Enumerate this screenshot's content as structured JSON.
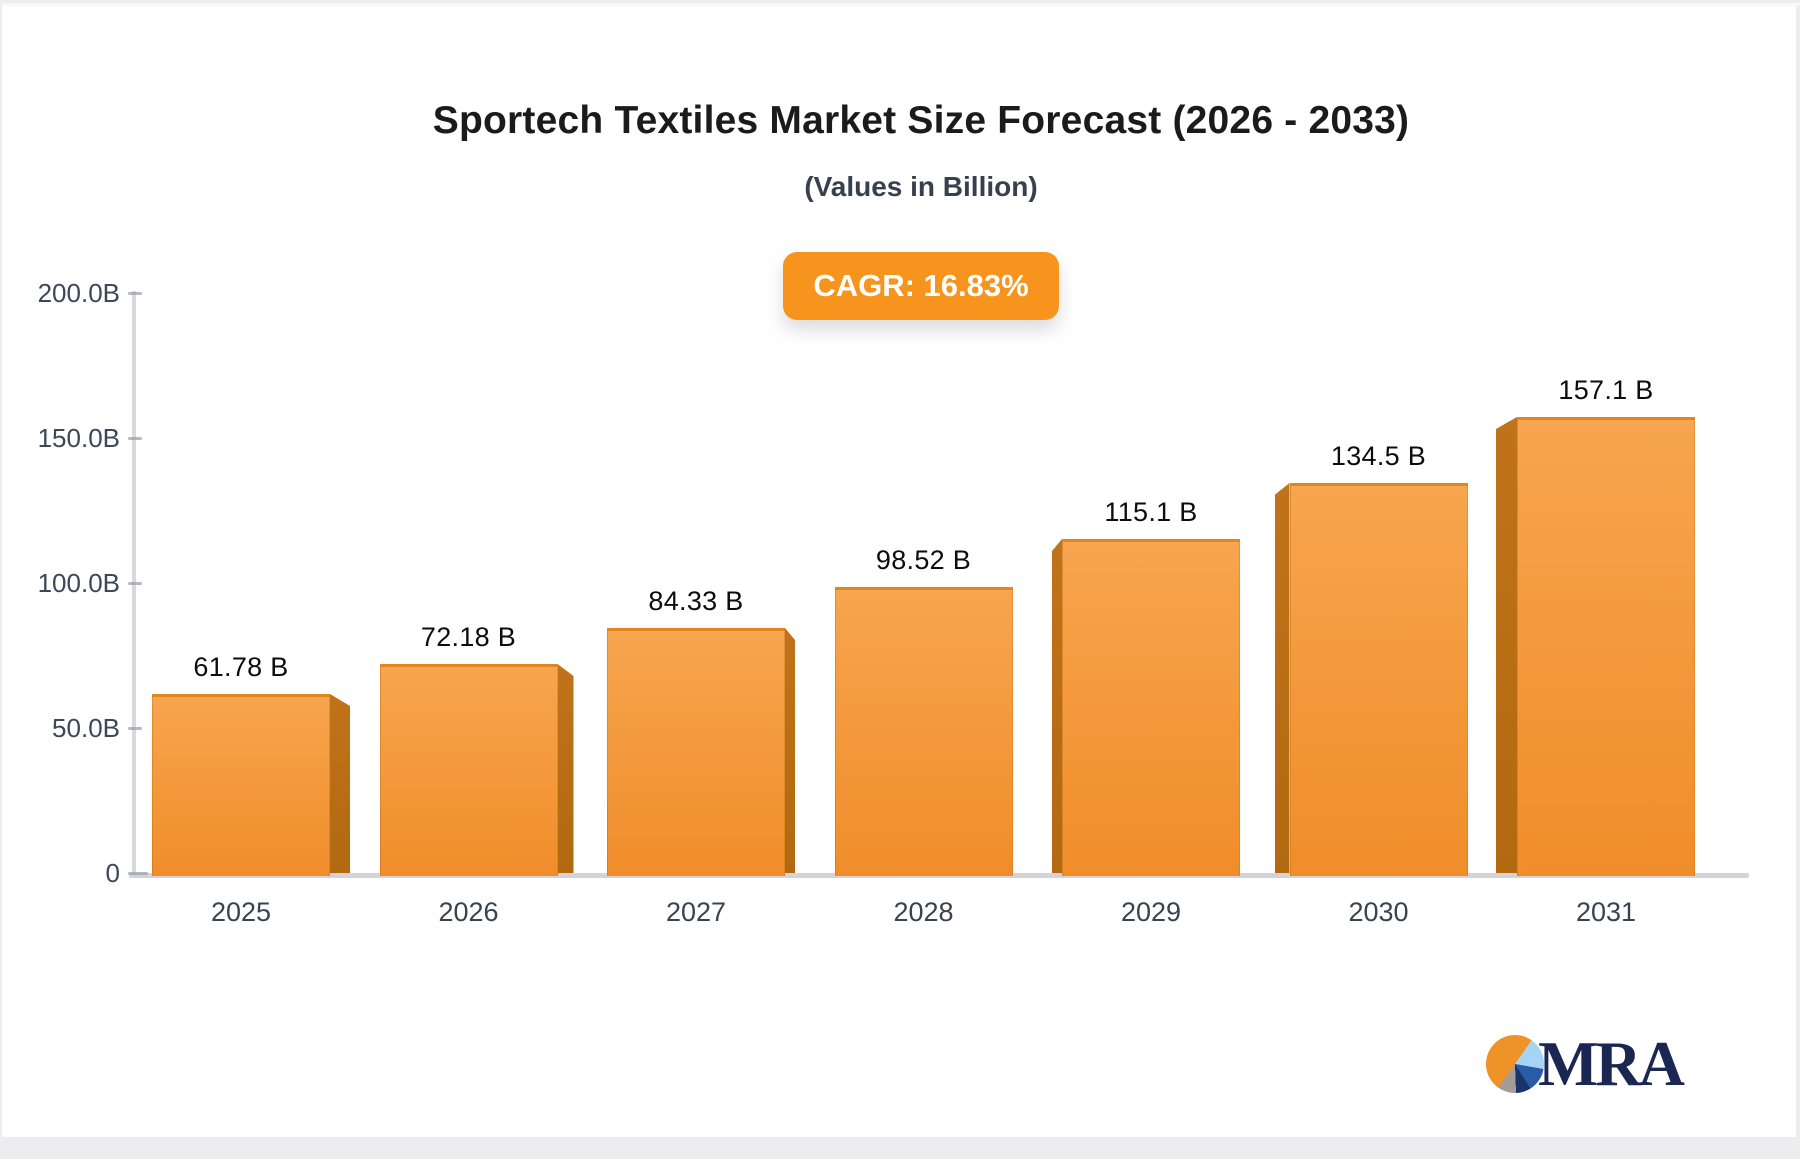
{
  "header": {
    "title": "Sportech Textiles Market Size Forecast (2026 - 2033)",
    "subtitle": "(Values in Billion)"
  },
  "badge": {
    "label": "CAGR: 16.83%",
    "color": "#F7941E"
  },
  "chart_data": {
    "type": "bar",
    "categories": [
      "2025",
      "2026",
      "2027",
      "2028",
      "2029",
      "2030",
      "2031"
    ],
    "values": [
      61.78,
      72.18,
      84.33,
      98.52,
      115.1,
      134.5,
      157.1
    ],
    "bar_labels": [
      "61.78 B",
      "72.18 B",
      "84.33 B",
      "98.52 B",
      "115.1 B",
      "134.5 B",
      "157.1 B"
    ],
    "title": "Sportech Textiles Market Size Forecast (2026 - 2033)",
    "subtitle": "(Values in Billion)",
    "xlabel": "",
    "ylabel": "",
    "ylim": [
      0,
      200
    ],
    "y_ticks": [
      {
        "value": 200,
        "label": "200.0B"
      },
      {
        "value": 150,
        "label": "150.0B"
      },
      {
        "value": 100,
        "label": "100.0B"
      },
      {
        "value": 50,
        "label": "50.0B"
      },
      {
        "value": 0,
        "label": "0"
      }
    ],
    "grid": false,
    "legend": "none",
    "bar_color": "#F49A3D",
    "bar_side_color": "#B56C12",
    "style": "3d-perspective-center"
  },
  "logo": {
    "wordmark": "MRA",
    "wordmark_color": "#1B2753",
    "pie_colors": [
      "#EF9227",
      "#A6D4F4",
      "#2A5AA8",
      "#17346B",
      "#A49C98"
    ]
  }
}
